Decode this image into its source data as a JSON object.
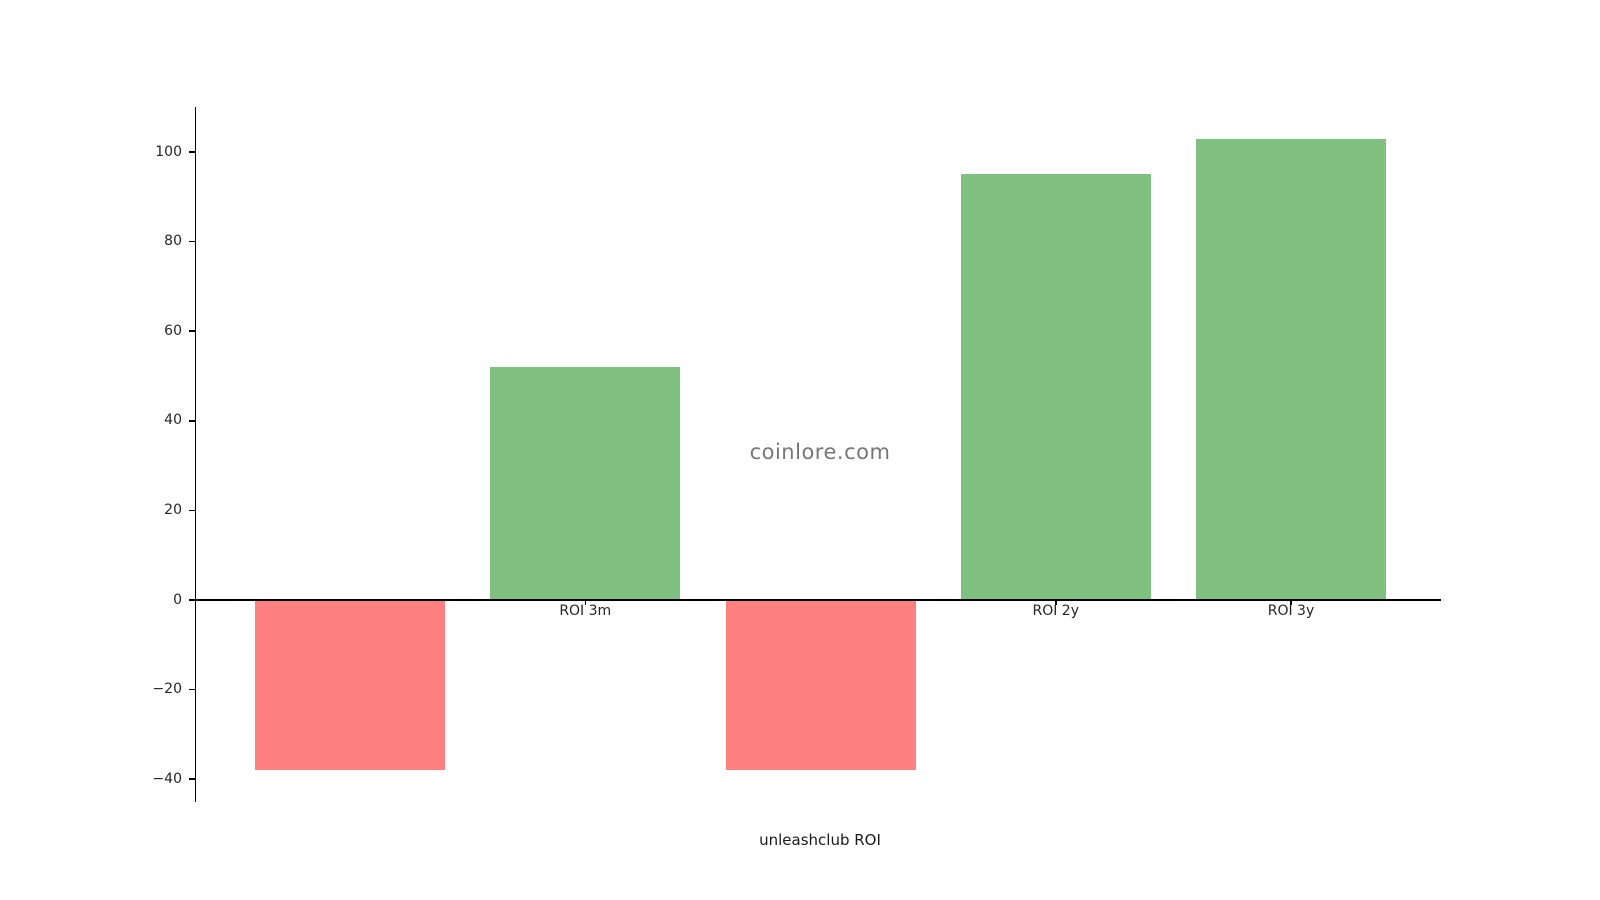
{
  "chart_data": {
    "type": "bar",
    "watermark": "coinlore.com",
    "xlabel": "unleashclub ROI",
    "categories": [
      "",
      "ROI 3m",
      "",
      "ROI 2y",
      "ROI 3y"
    ],
    "values": [
      -38,
      52,
      -38,
      95,
      103
    ],
    "yticks": [
      100,
      80,
      60,
      40,
      20,
      0,
      -20,
      -40
    ],
    "ylim": [
      -45,
      110
    ],
    "grid": false,
    "legend": null,
    "colors": {
      "positive": "#80c080",
      "negative": "#ff8080",
      "axis": "#000000",
      "tick_label": "#262626",
      "watermark": "#777777",
      "xlabel": "#1a1a1a"
    }
  }
}
